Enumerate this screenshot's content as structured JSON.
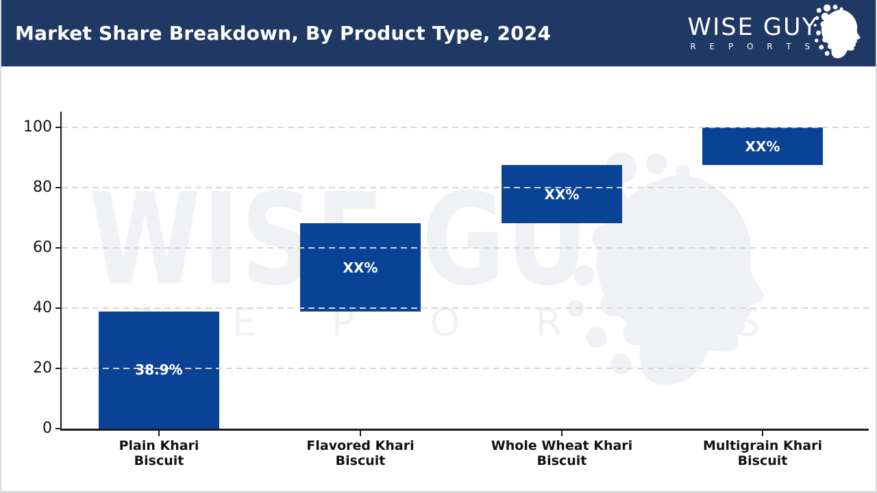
{
  "header": {
    "title": "Market Share Breakdown, By Product Type, 2024",
    "logo": {
      "name": "WISE GUY",
      "tagline": "R E P O R T S"
    }
  },
  "watermark": {
    "name": "WISE GUY",
    "tagline": "R E P O R T S"
  },
  "chart_data": {
    "type": "bar",
    "subtype": "floating-waterfall",
    "title": "Market Share Breakdown, By Product Type, 2024",
    "categories": [
      "Plain Khari\nBiscuit",
      "Flavored Khari\nBiscuit",
      "Whole Wheat Khari\nBiscuit",
      "Multigrain Khari\nBiscuit"
    ],
    "segments": [
      {
        "category": "Plain Khari Biscuit",
        "start": 0,
        "end": 38.9,
        "label": "38.9%"
      },
      {
        "category": "Flavored Khari Biscuit",
        "start": 38.9,
        "end": 68.1,
        "label": "XX%"
      },
      {
        "category": "Whole Wheat Khari Biscuit",
        "start": 68.1,
        "end": 87.5,
        "label": "XX%"
      },
      {
        "category": "Multigrain Khari Biscuit",
        "start": 87.5,
        "end": 100,
        "label": "XX%"
      }
    ],
    "xlabel": "",
    "ylabel": "",
    "ylim": [
      0,
      100
    ],
    "yticks": [
      0,
      20,
      40,
      60,
      80,
      100
    ],
    "grid": "horizontal-dashed-above-bars",
    "legend": "none",
    "colors": {
      "bar": "#0a4296",
      "bar_label": "#ffffff",
      "grid": "#d6d6d6",
      "axis": "#1a1a1a",
      "header_bg": "#1f3864",
      "header_text": "#ffffff",
      "watermark": "#eff1f4"
    }
  }
}
